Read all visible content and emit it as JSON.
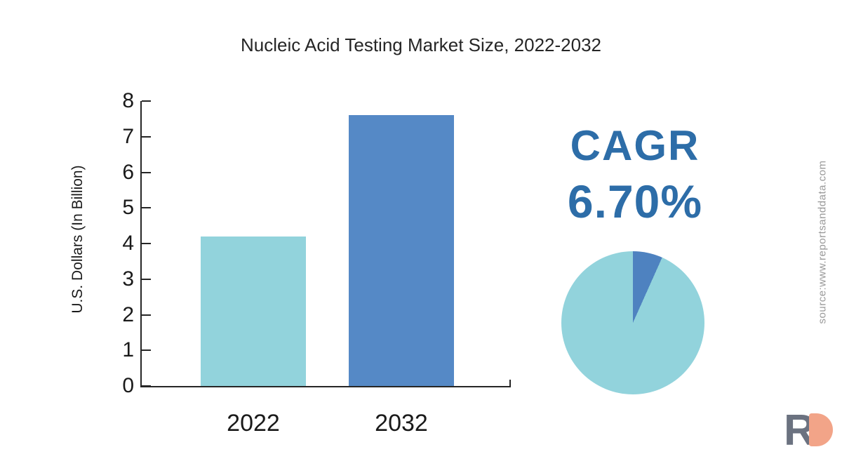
{
  "title": "Nucleic Acid Testing Market Size, 2022-2032",
  "chart_data": [
    {
      "type": "bar",
      "title": "Nucleic Acid Testing Market Size, 2022-2032",
      "categories": [
        "2022",
        "2032"
      ],
      "values": [
        4.2,
        7.6
      ],
      "bar_colors": [
        "#92d3dc",
        "#5589c6"
      ],
      "xlabel": "",
      "ylabel": "U.S. Dollars (In Billion)",
      "ylim": [
        0,
        8
      ],
      "yticks": [
        0,
        1,
        2,
        3,
        4,
        5,
        6,
        7,
        8
      ],
      "grid": false,
      "legend": false,
      "axis_color": "#262626"
    },
    {
      "type": "pie",
      "slices": [
        {
          "value_percent": 6.7,
          "color": "#4e82c0"
        },
        {
          "value_percent": 93.3,
          "color": "#92d3dc"
        }
      ],
      "start_angle_deg": 0,
      "direction": "clockwise",
      "title_above": {
        "line1": "CAGR",
        "line2": "6.70%",
        "color": "#2d6da8"
      }
    }
  ],
  "source_note": "source:www.reportsanddata.com",
  "logo": {
    "letter": "R",
    "letter_color": "#6b7280",
    "mark_color": "#f2a488"
  }
}
